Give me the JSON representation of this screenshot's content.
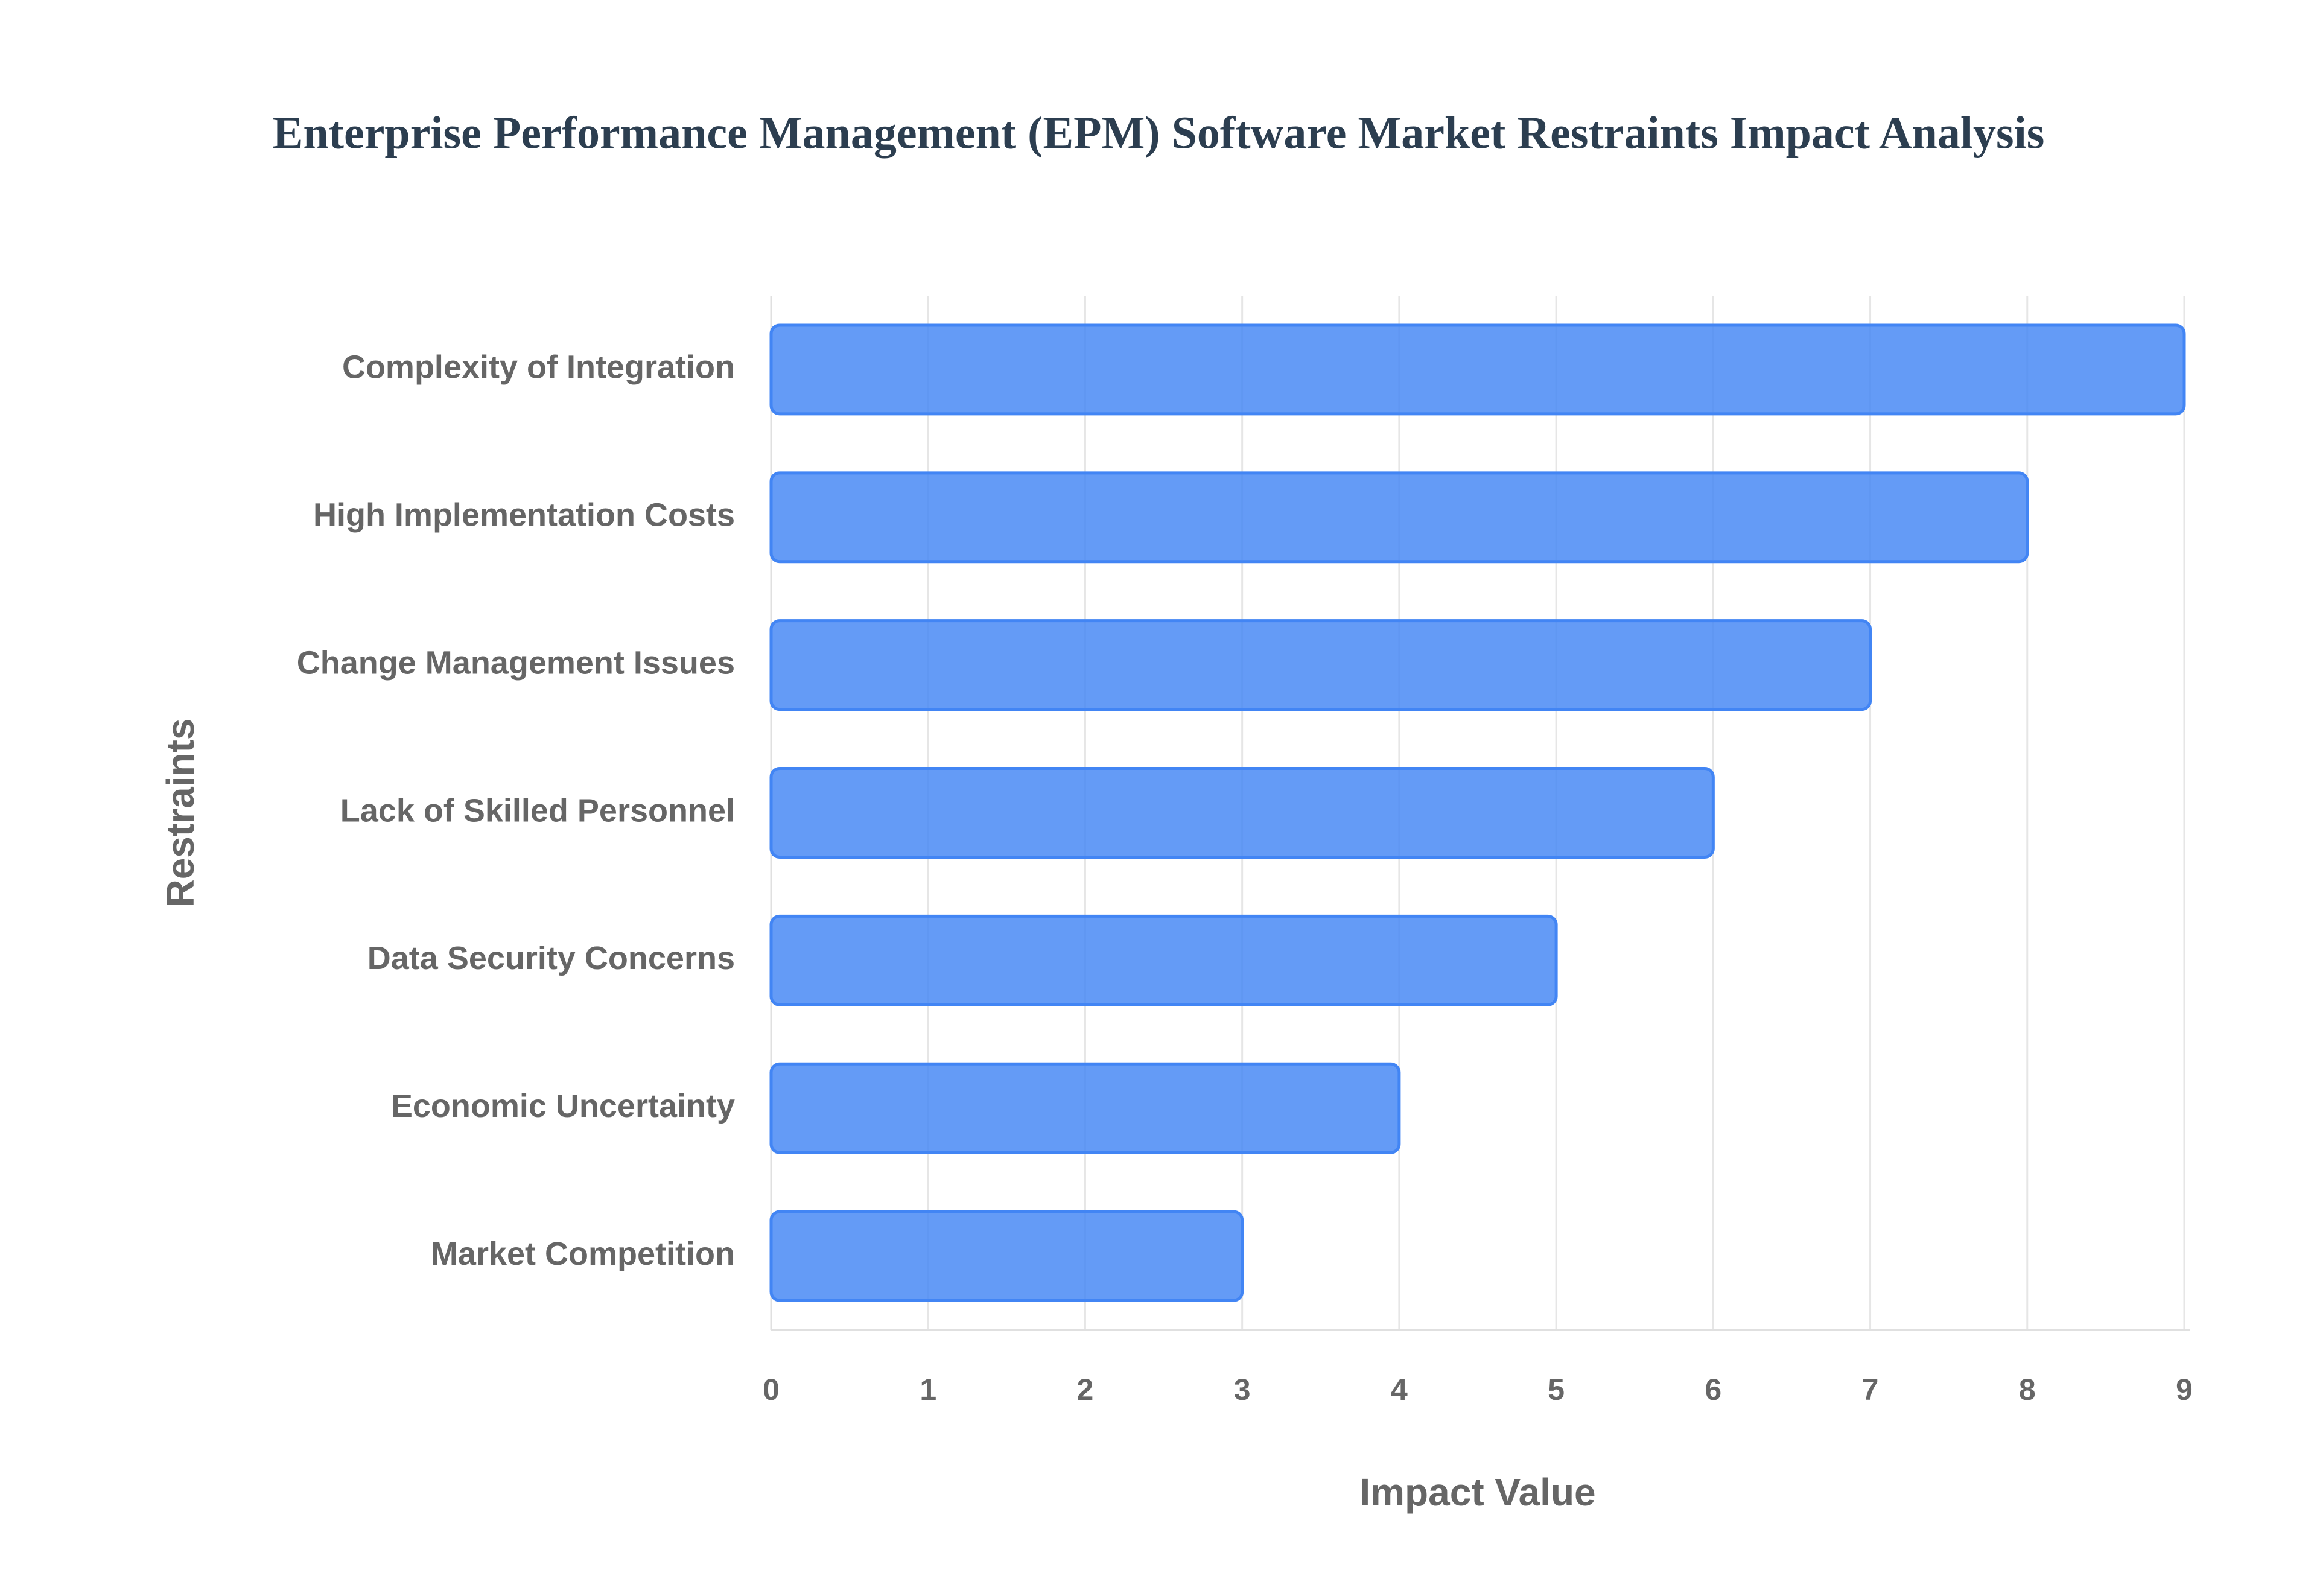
{
  "chart_data": {
    "type": "bar",
    "orientation": "horizontal",
    "title": "Enterprise Performance Management (EPM) Software Market Restraints Impact Analysis",
    "x_label": "Impact Value",
    "y_label": "Restraints",
    "categories": [
      "Complexity of Integration",
      "High Implementation Costs",
      "Change Management Issues",
      "Lack of Skilled Personnel",
      "Data Security Concerns",
      "Economic Uncertainty",
      "Market Competition"
    ],
    "values": [
      9,
      8,
      7,
      6,
      5,
      4,
      3
    ],
    "color": "#4285f4",
    "xlim": [
      0,
      9
    ],
    "xticks": [
      0,
      1,
      2,
      3,
      4,
      5,
      6,
      7,
      8,
      9
    ],
    "grid": true
  }
}
